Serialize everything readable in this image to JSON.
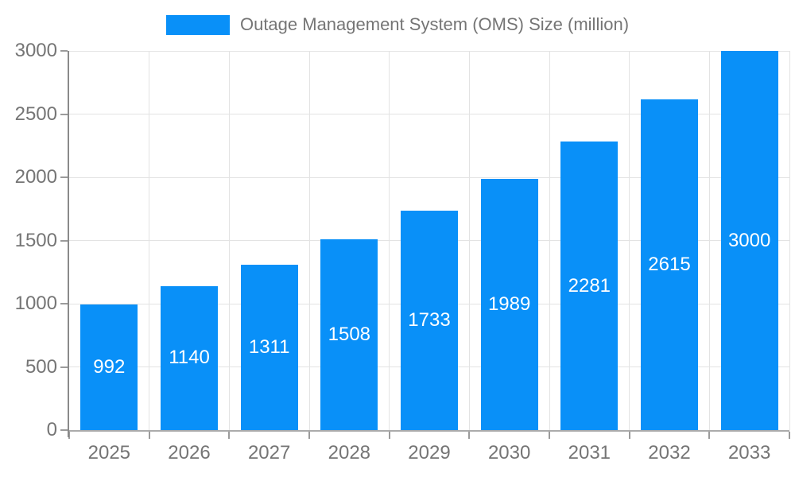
{
  "legend": {
    "label": "Outage Management System (OMS) Size (million)"
  },
  "chart_data": {
    "type": "bar",
    "title": "Outage Management System (OMS) Size (million)",
    "categories": [
      "2025",
      "2026",
      "2027",
      "2028",
      "2029",
      "2030",
      "2031",
      "2032",
      "2033"
    ],
    "values": [
      992,
      1140,
      1311,
      1508,
      1733,
      1989,
      2281,
      2615,
      3000
    ],
    "xlabel": "",
    "ylabel": "",
    "ylim": [
      0,
      3000
    ],
    "yticks": [
      0,
      500,
      1000,
      1500,
      2000,
      2500,
      3000
    ],
    "grid": true,
    "legend_position": "top-center",
    "bar_color": "#0990f8",
    "value_label_color": "#ffffff",
    "axis_text_color": "#757575"
  }
}
